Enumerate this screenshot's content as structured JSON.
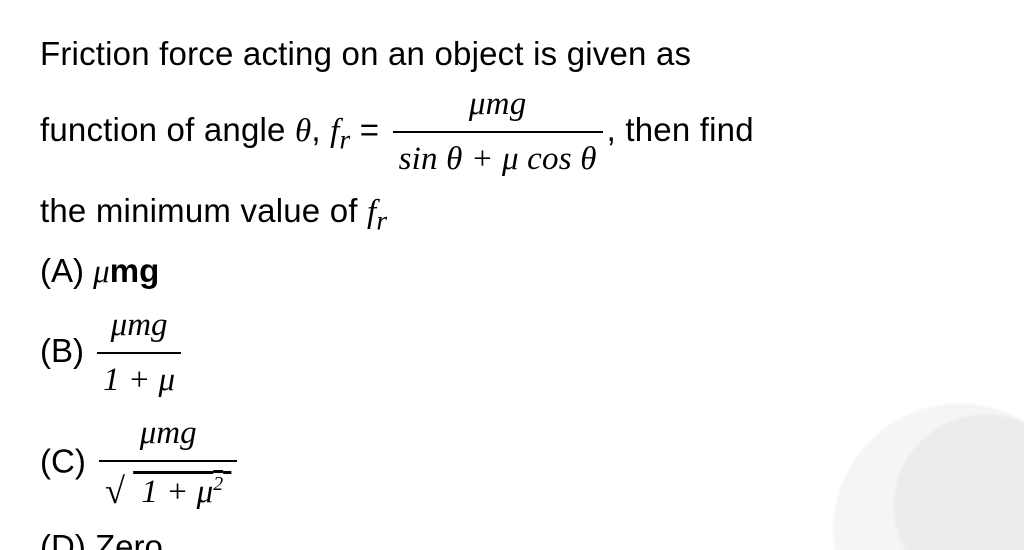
{
  "question": {
    "line1": "Friction force acting on an object is given as",
    "line2_prefix": "function of angle ",
    "theta": "θ",
    "sep": ", ",
    "fr": "f",
    "fr_sub": "r",
    "equals": " = ",
    "formula_num_mu": "μ",
    "formula_num_m": "m",
    "formula_num_g": "g",
    "formula_den": "sin θ + μ cos θ",
    "line2_suffix": ", then find",
    "line3_prefix": "the minimum value of ",
    "fr2": "f",
    "fr2_sub": "r"
  },
  "options": {
    "A": {
      "label": "(A)",
      "text_mu": "μ",
      "text_mg": "mg"
    },
    "B": {
      "label": "(B)",
      "num_mu": "μ",
      "num_m": "m",
      "num_g": "g",
      "den": "1 + μ"
    },
    "C": {
      "label": "(C)",
      "num_mu": "μ",
      "num_m": "m",
      "num_g": "g",
      "den_inner": "1 + μ",
      "den_exp": "2"
    },
    "D": {
      "label": "(D)",
      "text": "Zero"
    }
  },
  "style": {
    "font_size_pt": 25,
    "text_color": "#000000",
    "background": "#ffffff"
  }
}
